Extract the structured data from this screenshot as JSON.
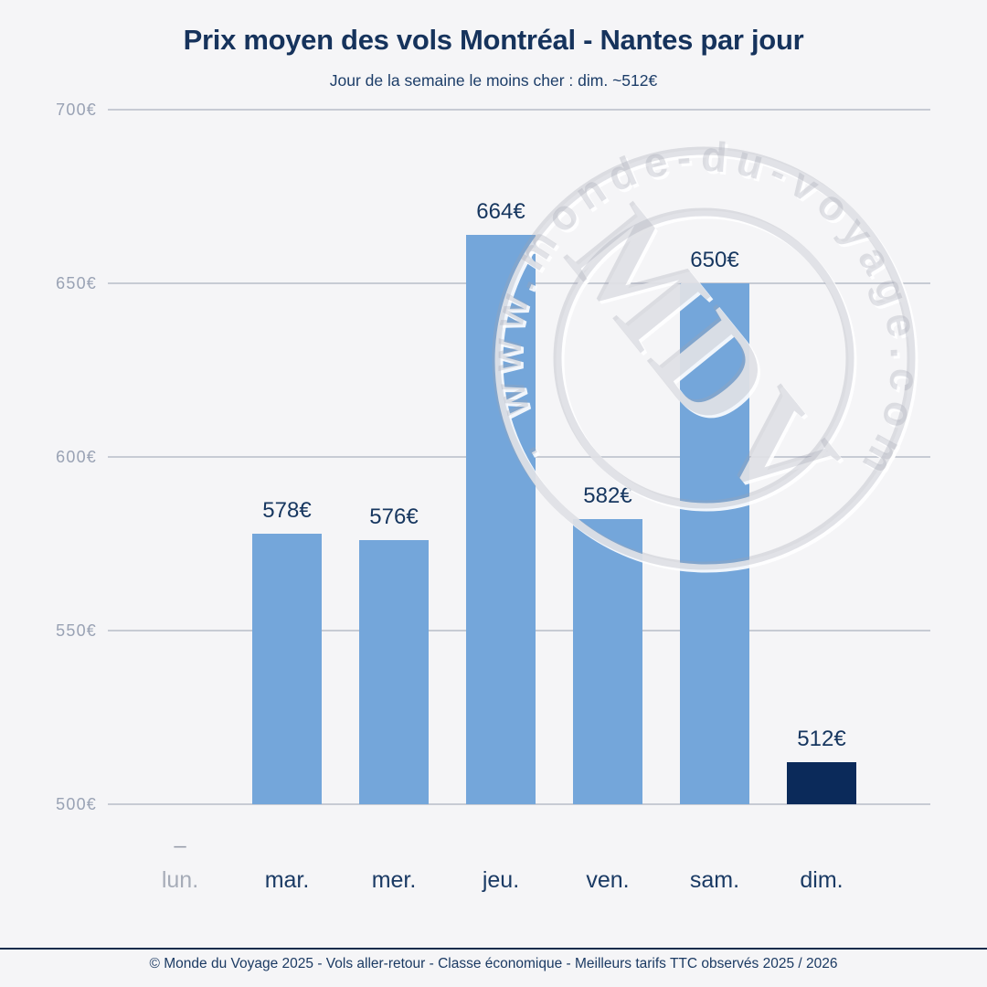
{
  "header": {
    "title": "Prix moyen des vols Montréal - Nantes par jour",
    "subtitle": "Jour de la semaine le moins cher : dim. ~512€"
  },
  "chart_data": {
    "type": "bar",
    "title": "Prix moyen des vols Montréal - Nantes par jour",
    "subtitle": "Jour de la semaine le moins cher : dim. ~512€",
    "categories": [
      "lun.",
      "mar.",
      "mer.",
      "jeu.",
      "ven.",
      "sam.",
      "dim."
    ],
    "values": [
      null,
      578,
      576,
      664,
      582,
      650,
      512
    ],
    "value_labels": [
      "",
      "578€",
      "576€",
      "664€",
      "582€",
      "650€",
      "512€"
    ],
    "no_data_marker": "–",
    "unit": "€",
    "ylim": [
      500,
      700
    ],
    "yticks": [
      700,
      650,
      600,
      550,
      500
    ],
    "ytick_labels": [
      "700€",
      "650€",
      "600€",
      "550€",
      "500€"
    ],
    "grid": true,
    "legend": "none",
    "highlight_index": 6,
    "colors": {
      "bar": "#74a6da",
      "bar_highlight": "#0b2a5a",
      "axis_label": "#99a2b4",
      "grid_line": "#c7cbd4",
      "value_label": "#16365f",
      "day_label": "#1a3a64",
      "day_label_muted": "#a6acb8"
    }
  },
  "watermark": {
    "ring_text": "· www.monde-du-voyage.com",
    "center_text": "MDV"
  },
  "footer": {
    "text": "© Monde du Voyage 2025 - Vols aller-retour - Classe économique - Meilleurs tarifs TTC observés 2025 / 2026"
  }
}
